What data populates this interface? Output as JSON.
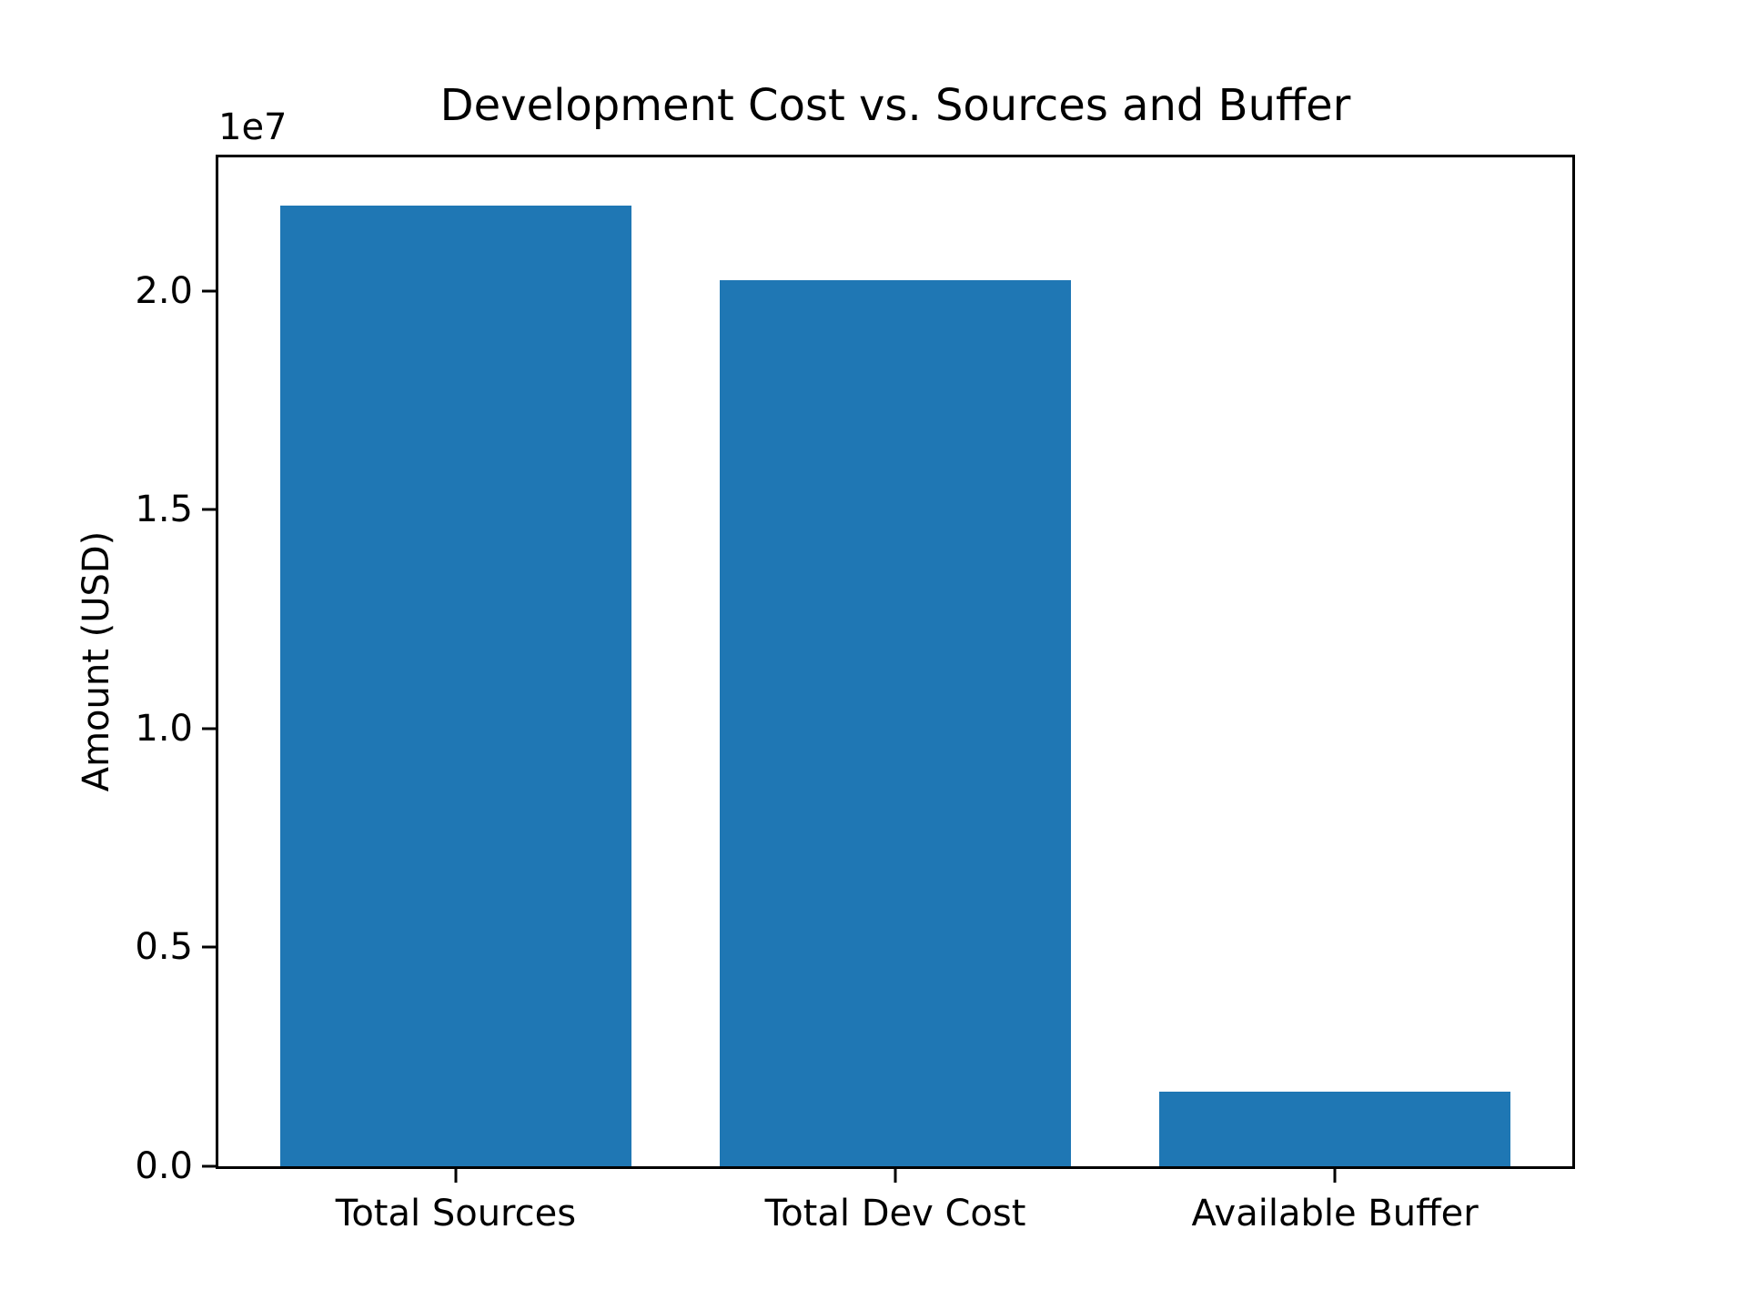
{
  "chart_data": {
    "type": "bar",
    "title": "Development Cost vs. Sources and Buffer",
    "xlabel": "",
    "ylabel": "Amount (USD)",
    "offset_text": "1e7",
    "categories": [
      "Total Sources",
      "Total Dev Cost",
      "Available Buffer"
    ],
    "values": [
      21950000,
      20250000,
      1700000
    ],
    "ylim": [
      0,
      23047500
    ],
    "yticks": [
      0,
      5000000,
      10000000,
      15000000,
      20000000
    ],
    "ytick_labels": [
      "0.0",
      "0.5",
      "1.0",
      "1.5",
      "2.0"
    ],
    "bar_color": "#1f77b4",
    "bar_width": 0.8,
    "grid": false,
    "legend_position": "none",
    "axis_color": "#000000",
    "background_color": "#ffffff"
  }
}
